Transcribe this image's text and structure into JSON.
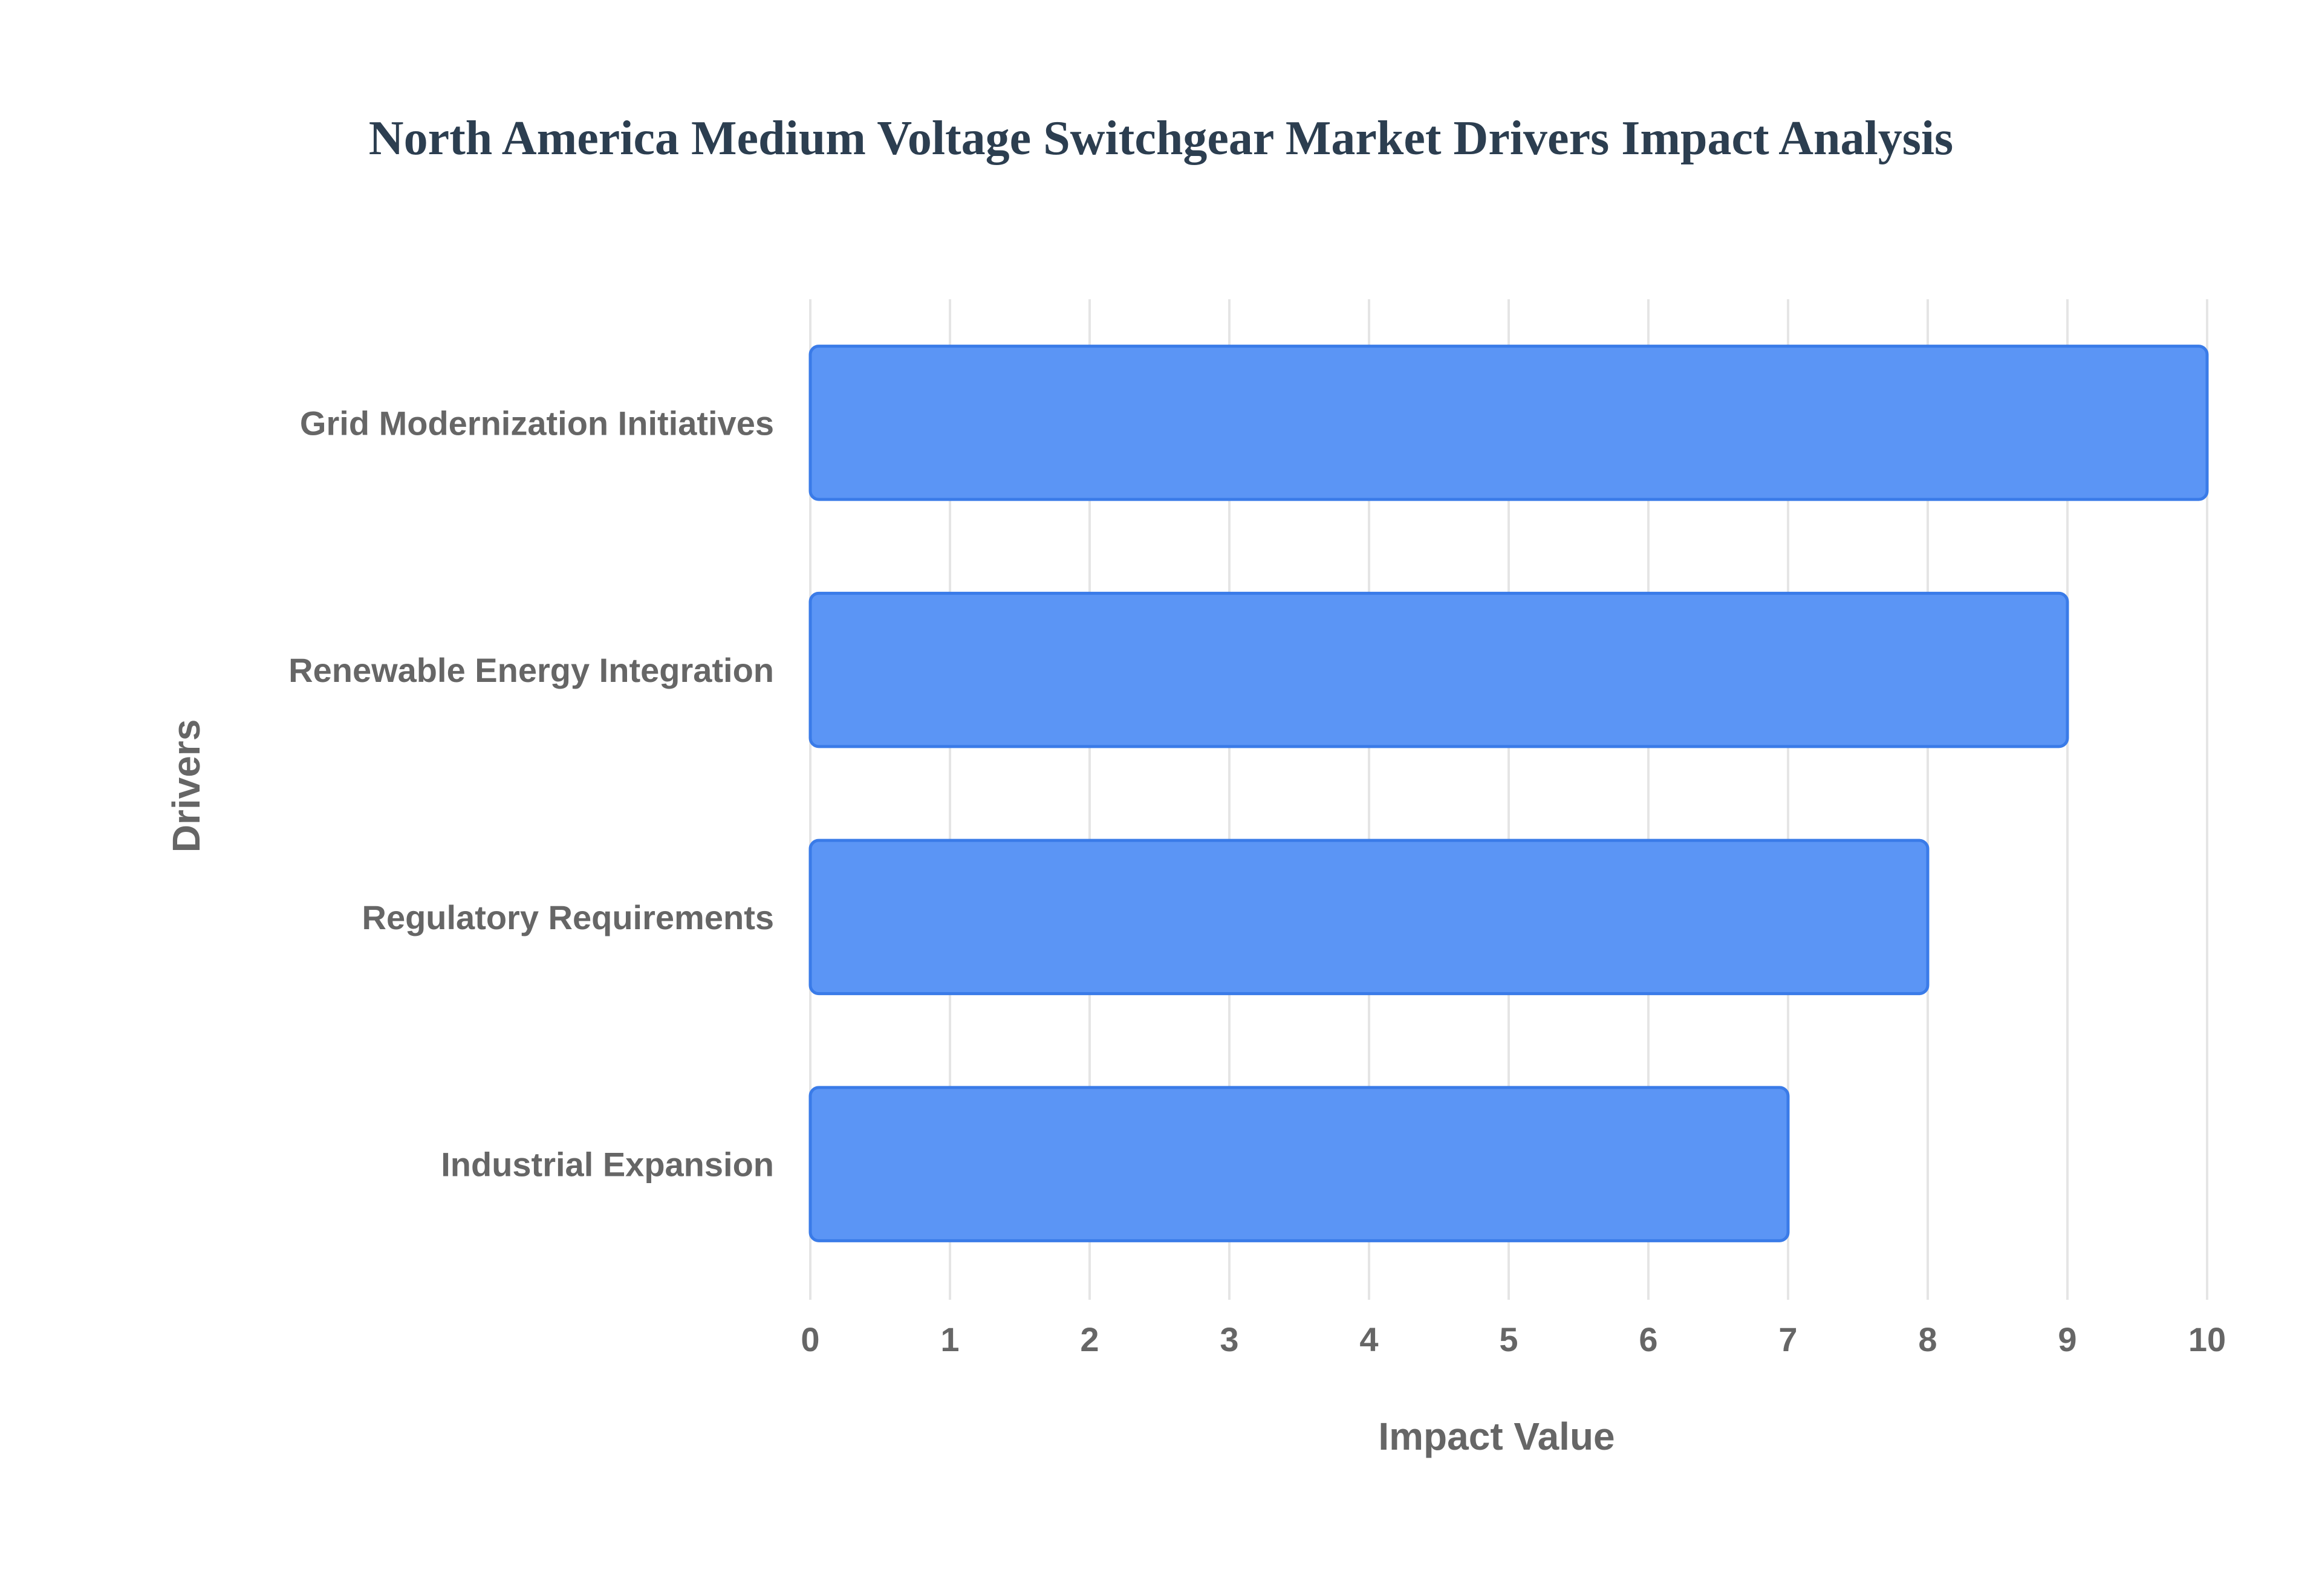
{
  "chart_data": {
    "type": "bar",
    "orientation": "horizontal",
    "title": "North America Medium Voltage Switchgear Market Drivers Impact Analysis",
    "xlabel": "Impact Value",
    "ylabel": "Drivers",
    "categories": [
      "Grid Modernization Initiatives",
      "Renewable Energy Integration",
      "Regulatory Requirements",
      "Industrial Expansion"
    ],
    "values": [
      10,
      9,
      8,
      7
    ],
    "xlim": [
      0,
      10
    ],
    "xticks": [
      "0",
      "1",
      "2",
      "3",
      "4",
      "5",
      "6",
      "7",
      "8",
      "9",
      "10"
    ],
    "grid": true,
    "legend": "none",
    "colors": {
      "bar_fill": "#5b95f5",
      "bar_border": "#3a7be8",
      "grid": "#e5e5e5",
      "title": "#2c3e50",
      "text": "#666666"
    }
  }
}
